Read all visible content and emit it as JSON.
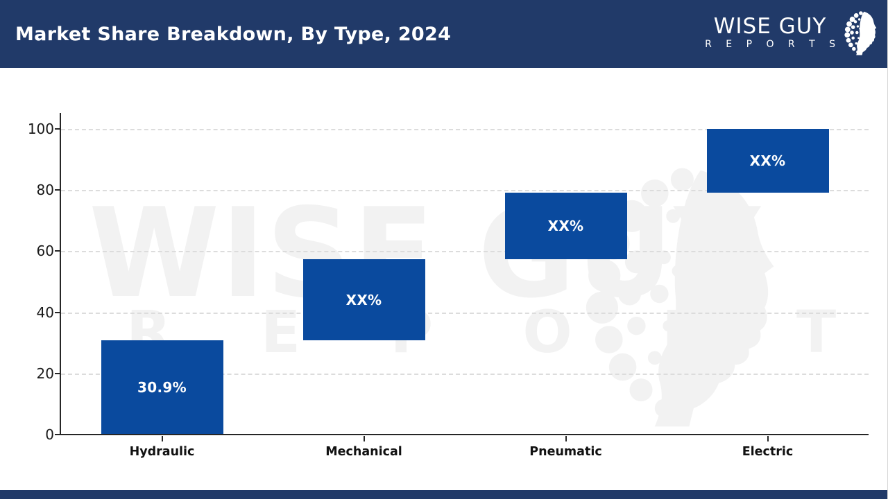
{
  "header": {
    "title": "Market Share Breakdown, By Type, 2024",
    "logo": {
      "line1": "WISE GUY",
      "line2": "R E P O R T S"
    }
  },
  "watermark": {
    "line1": "WISE GUY",
    "line2": "R E P O R T S"
  },
  "colors": {
    "header_bg": "#213A69",
    "footer_bg": "#213A69",
    "bar_blue": "#0A4A9E",
    "grid": "#DCDCDC",
    "watermark": "#F2F2F2"
  },
  "chart_data": {
    "type": "bar",
    "subtype": "waterfall",
    "title": "Market Share Breakdown, By Type, 2024",
    "categories": [
      "Hydraulic",
      "Mechanical",
      "Pneumatic",
      "Electric"
    ],
    "bars": [
      {
        "category": "Hydraulic",
        "start": 0,
        "end": 30.9,
        "label": "30.9%"
      },
      {
        "category": "Mechanical",
        "start": 30.9,
        "end": 57.3,
        "label": "XX%"
      },
      {
        "category": "Pneumatic",
        "start": 57.3,
        "end": 79.2,
        "label": "XX%"
      },
      {
        "category": "Electric",
        "start": 79.2,
        "end": 100,
        "label": "XX%"
      }
    ],
    "xlabel": "",
    "ylabel": "",
    "ylim": [
      0,
      100
    ],
    "yticks": [
      0,
      20,
      40,
      60,
      80,
      100
    ],
    "grid": "horizontal-dashed",
    "legend": "none",
    "bar_color": "#0A4A9E",
    "bar_label_color": "#FFFFFF"
  }
}
